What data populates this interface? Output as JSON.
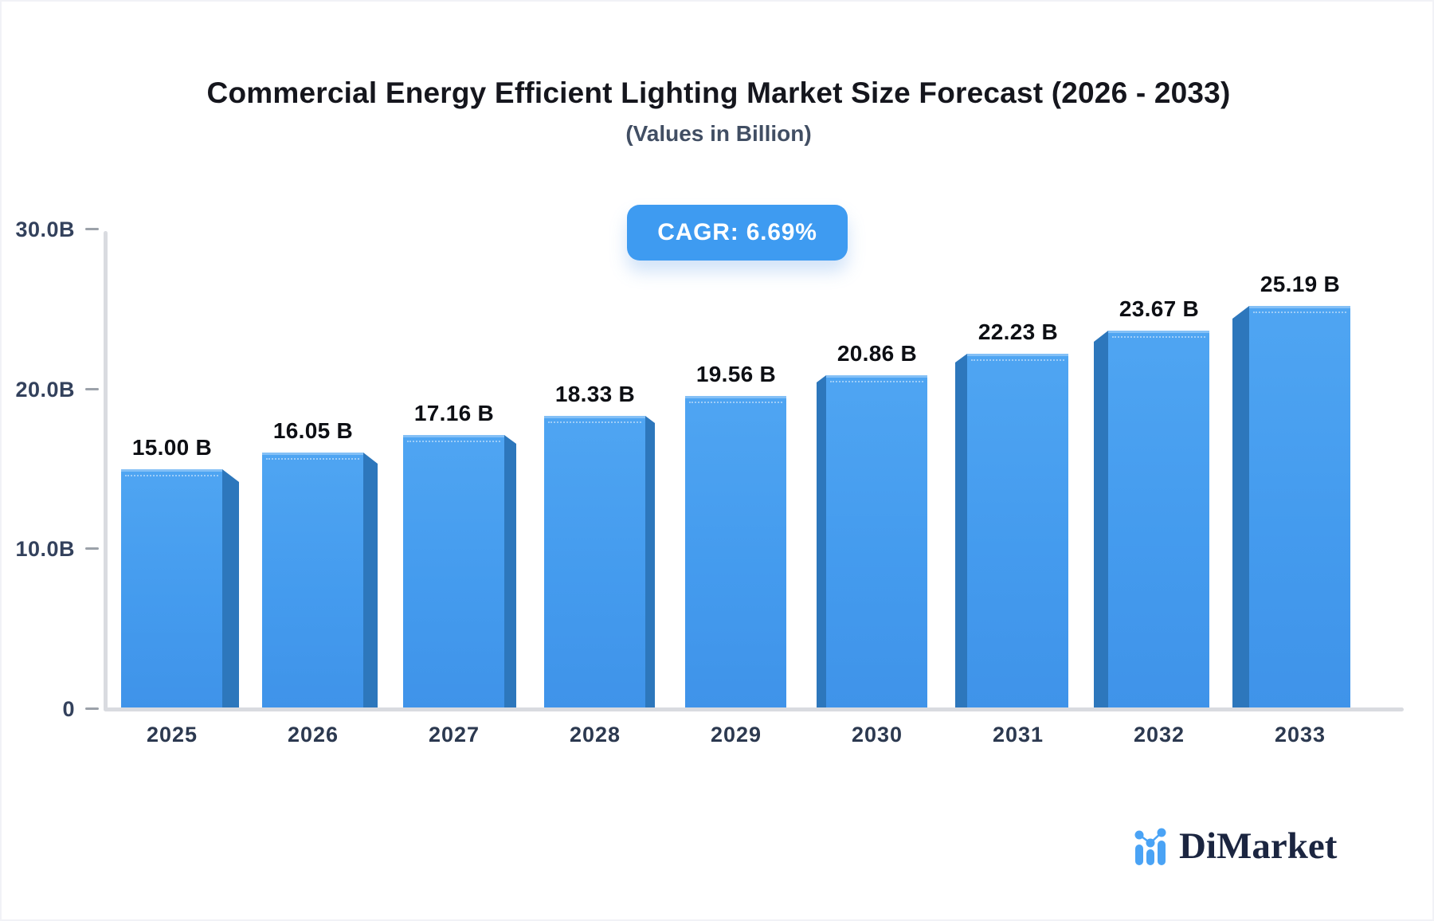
{
  "page": {
    "title": "Commercial Energy Efficient Lighting Market Size Forecast (2026 - 2033)",
    "subtitle": "(Values in Billion)",
    "cagr_label": "CAGR: 6.69%"
  },
  "brand": {
    "name": "DiMarket",
    "icon": "bar-chart-logo-icon",
    "icon_color": "#4aa3f5",
    "text_color": "#1b2540"
  },
  "colors": {
    "bar_face": "#449bee",
    "bar_face_top": "#4fa5f2",
    "bar_face_bottom": "#3f93e9",
    "bar_side": "#2d77bc",
    "axis_line": "#d9dbe0",
    "tick": "#9ba1a9",
    "y_label": "#33415c",
    "x_label": "#2c3950",
    "value_label": "#0d0f14",
    "badge_bg": "#3e9bf1",
    "badge_text": "#ffffff",
    "title": "#15161d",
    "subtitle": "#414e63"
  },
  "chart_data": {
    "type": "bar",
    "title": "Commercial Energy Efficient Lighting Market Size Forecast (2026 - 2033)",
    "subtitle": "(Values in Billion)",
    "annotation": "CAGR: 6.69%",
    "style": "3d-perspective-bars",
    "grid": false,
    "legend": "none",
    "xlabel": "",
    "ylabel": "",
    "unit": "Billion",
    "categories": [
      "2025",
      "2026",
      "2027",
      "2028",
      "2029",
      "2030",
      "2031",
      "2032",
      "2033"
    ],
    "values": [
      15.0,
      16.05,
      17.16,
      18.33,
      19.56,
      20.86,
      22.23,
      23.67,
      25.19
    ],
    "value_labels": [
      "15.00 B",
      "16.05 B",
      "17.16 B",
      "18.33 B",
      "19.56 B",
      "20.86 B",
      "22.23 B",
      "23.67 B",
      "25.19 B"
    ],
    "ylim": [
      0,
      30
    ],
    "yticks": [
      {
        "value": 0,
        "label": "0"
      },
      {
        "value": 10,
        "label": "10.0B"
      },
      {
        "value": 20,
        "label": "20.0B"
      },
      {
        "value": 30,
        "label": "30.0B"
      }
    ]
  }
}
